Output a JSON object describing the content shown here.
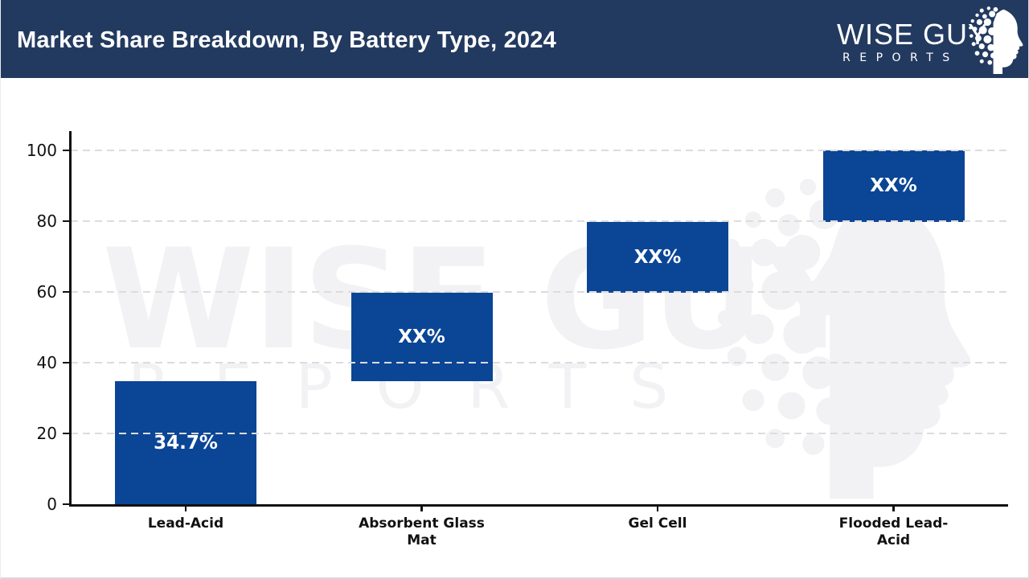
{
  "header": {
    "title": "Market Share Breakdown, By Battery Type, 2024",
    "brand": {
      "name": "WISE GUY",
      "tagline": "REPORTS",
      "logo_icon": "dotted-head-profile"
    },
    "background_color": "#233a60",
    "text_color": "#ffffff"
  },
  "watermark": {
    "big_text": "WISE GUY",
    "sub_text": "REPORTS",
    "color": "#f2f2f5"
  },
  "chart_data": {
    "type": "bar",
    "subtype": "floating-waterfall",
    "title": "Market Share Breakdown, By Battery Type, 2024",
    "categories": [
      "Lead-Acid",
      "Absorbent Glass Mat",
      "Gel Cell",
      "Flooded Lead-Acid"
    ],
    "segments": [
      {
        "category": "Lead-Acid",
        "start": 0,
        "end": 34.7,
        "label": "34.7%"
      },
      {
        "category": "Absorbent Glass Mat",
        "start": 34.7,
        "end": 59.8,
        "label": "XX%"
      },
      {
        "category": "Gel Cell",
        "start": 59.8,
        "end": 79.8,
        "label": "XX%"
      },
      {
        "category": "Flooded Lead-Acid",
        "start": 79.8,
        "end": 100,
        "label": "XX%"
      }
    ],
    "xlabel": "",
    "ylabel": "",
    "y_ticks": [
      0,
      20,
      40,
      60,
      80,
      100
    ],
    "ylim": [
      0,
      105
    ],
    "grid": "horizontal-dashed",
    "legend": "none",
    "bar_color": "#0b4596",
    "value_label_color": "#ffffff",
    "axis_color": "#111111",
    "gridline_color": "#dcdcdc",
    "tick_label_color": "#111111"
  }
}
